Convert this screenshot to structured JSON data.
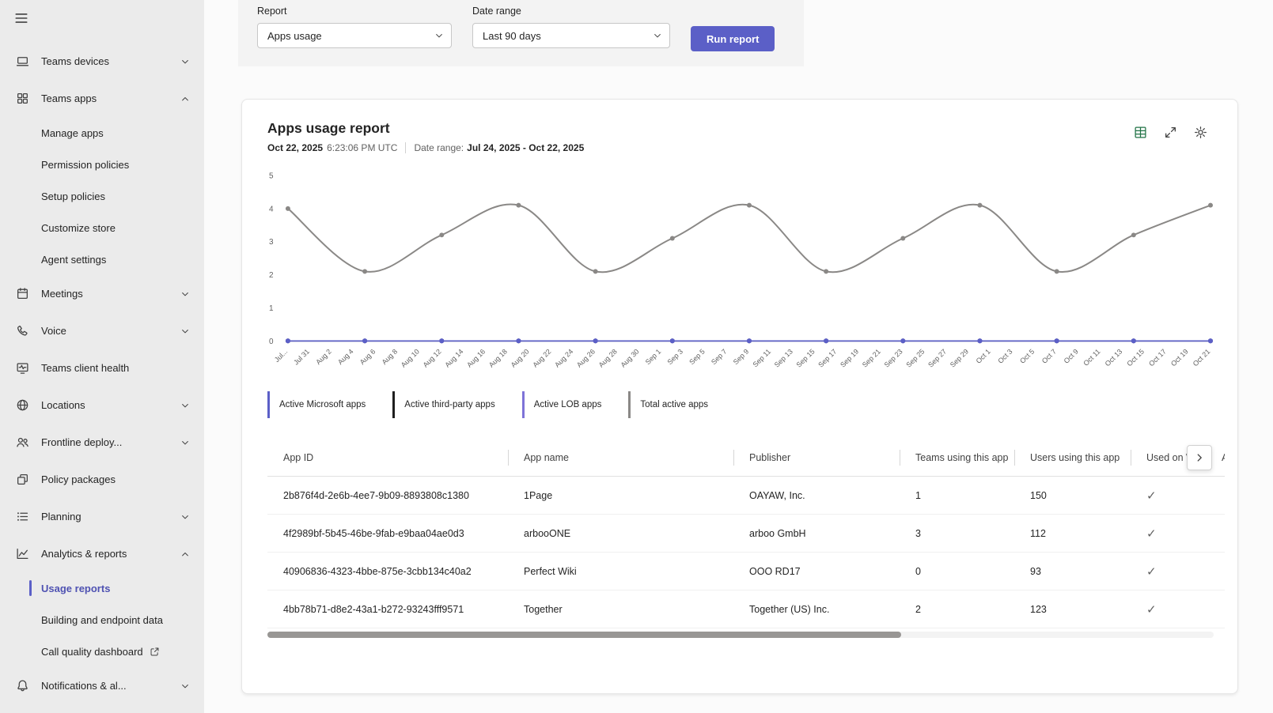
{
  "accent_color": "#5b5fc7",
  "sidebar": {
    "items": [
      {
        "label": "Teams devices",
        "icon": "devices-icon",
        "chevron": "down"
      },
      {
        "label": "Teams apps",
        "icon": "grid-icon",
        "chevron": "up",
        "children": [
          {
            "label": "Manage apps"
          },
          {
            "label": "Permission policies"
          },
          {
            "label": "Setup policies"
          },
          {
            "label": "Customize store"
          },
          {
            "label": "Agent settings"
          }
        ]
      },
      {
        "label": "Meetings",
        "icon": "calendar-icon",
        "chevron": "down"
      },
      {
        "label": "Voice",
        "icon": "phone-icon",
        "chevron": "down"
      },
      {
        "label": "Teams client health",
        "icon": "pulse-icon"
      },
      {
        "label": "Locations",
        "icon": "globe-icon",
        "chevron": "down"
      },
      {
        "label": "Frontline deploy...",
        "icon": "people-icon",
        "chevron": "down"
      },
      {
        "label": "Policy packages",
        "icon": "package-icon"
      },
      {
        "label": "Planning",
        "icon": "tasklist-icon",
        "chevron": "down"
      },
      {
        "label": "Analytics & reports",
        "icon": "chart-icon",
        "chevron": "up",
        "children": [
          {
            "label": "Usage reports",
            "selected": true
          },
          {
            "label": "Building and endpoint data"
          },
          {
            "label": "Call quality dashboard",
            "external": true
          }
        ]
      },
      {
        "label": "Notifications & al...",
        "icon": "bell-icon",
        "chevron": "down"
      }
    ]
  },
  "filters": {
    "report_label": "Report",
    "report_value": "Apps usage",
    "range_label": "Date range",
    "range_value": "Last 90 days",
    "run_label": "Run report"
  },
  "report": {
    "title": "Apps usage report",
    "generated_date": "Oct 22, 2025",
    "generated_time": "6:23:06 PM UTC",
    "date_range_label": "Date range:",
    "date_range": "Jul 24, 2025 - Oct 22, 2025"
  },
  "chart_data": {
    "type": "line",
    "title": "Apps usage report",
    "xlabel": "",
    "ylabel": "",
    "ylim": [
      0,
      5
    ],
    "y_ticks": [
      0,
      1,
      2,
      3,
      4,
      5
    ],
    "grid": false,
    "legend_position": "bottom",
    "x_labels": [
      "Jul...",
      "Jul 31",
      "Aug 2",
      "Aug 4",
      "Aug 6",
      "Aug 8",
      "Aug 10",
      "Aug 12",
      "Aug 14",
      "Aug 16",
      "Aug 18",
      "Aug 20",
      "Aug 22",
      "Aug 24",
      "Aug 26",
      "Aug 28",
      "Aug 30",
      "Sep 1",
      "Sep 3",
      "Sep 5",
      "Sep 7",
      "Sep 9",
      "Sep 11",
      "Sep 13",
      "Sep 15",
      "Sep 17",
      "Sep 19",
      "Sep 21",
      "Sep 23",
      "Sep 25",
      "Sep 27",
      "Sep 29",
      "Oct 1",
      "Oct 3",
      "Oct 5",
      "Oct 7",
      "Oct 9",
      "Oct 11",
      "Oct 13",
      "Oct 15",
      "Oct 17",
      "Oct 19",
      "Oct 21"
    ],
    "series": [
      {
        "name": "Active Microsoft apps",
        "color": "#5b5fc7",
        "values": [
          0,
          0,
          0,
          0,
          0,
          0,
          0,
          0,
          0,
          0,
          0,
          0,
          0
        ]
      },
      {
        "name": "Active third-party apps",
        "color": "#1f1f1f",
        "values": [
          0,
          0,
          0,
          0,
          0,
          0,
          0,
          0,
          0,
          0,
          0,
          0,
          0
        ]
      },
      {
        "name": "Active LOB apps",
        "color": "#7e73d8",
        "values": [
          0,
          0,
          0,
          0,
          0,
          0,
          0,
          0,
          0,
          0,
          0,
          0,
          0
        ]
      },
      {
        "name": "Total active apps",
        "color": "#8a8886",
        "values": [
          4.0,
          2.1,
          3.2,
          4.1,
          2.1,
          3.1,
          4.1,
          2.1,
          3.1,
          4.1,
          2.1,
          3.2,
          4.1
        ]
      }
    ]
  },
  "table": {
    "columns": [
      {
        "label": "App ID",
        "key": "app_id"
      },
      {
        "label": "App name",
        "key": "app_name"
      },
      {
        "label": "Publisher",
        "key": "publisher"
      },
      {
        "label": "Teams using this app",
        "key": "teams_using"
      },
      {
        "label": "Users using this app",
        "key": "users_using"
      },
      {
        "label": "Used on W",
        "key": "used_on_windows"
      },
      {
        "label": "A",
        "key": "next_column_clipped"
      }
    ],
    "rows": [
      {
        "app_id": "2b876f4d-2e6b-4ee7-9b09-8893808c1380",
        "app_name": "1Page",
        "publisher": "OAYAW, Inc.",
        "teams_using": 1,
        "users_using": 150,
        "used_on_windows": true
      },
      {
        "app_id": "4f2989bf-5b45-46be-9fab-e9baa04ae0d3",
        "app_name": "arbooONE",
        "publisher": "arboo GmbH",
        "teams_using": 3,
        "users_using": 112,
        "used_on_windows": true
      },
      {
        "app_id": "40906836-4323-4bbe-875e-3cbb134c40a2",
        "app_name": "Perfect Wiki",
        "publisher": "OOO RD17",
        "teams_using": 0,
        "users_using": 93,
        "used_on_windows": true
      },
      {
        "app_id": "4bb78b71-d8e2-43a1-b272-93243fff9571",
        "app_name": "Together",
        "publisher": "Together (US) Inc.",
        "teams_using": 2,
        "users_using": 123,
        "used_on_windows": true
      }
    ]
  }
}
